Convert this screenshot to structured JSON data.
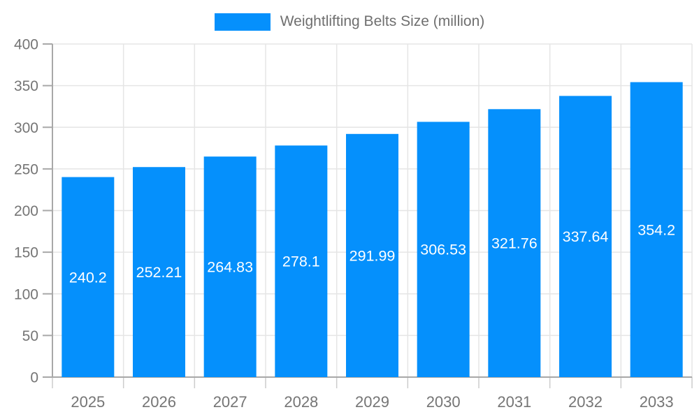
{
  "chart_data": {
    "type": "bar",
    "title": "Weightlifting Belts Size (million)",
    "legend_entries": [
      "Weightlifting Belts Size (million)"
    ],
    "legend_position": "top",
    "categories": [
      "2025",
      "2026",
      "2027",
      "2028",
      "2029",
      "2030",
      "2031",
      "2032",
      "2033"
    ],
    "series": [
      {
        "name": "Weightlifting Belts Size (million)",
        "values": [
          240.2,
          252.21,
          264.83,
          278.1,
          291.99,
          306.53,
          321.76,
          337.64,
          354.2
        ]
      }
    ],
    "value_labels": [
      "240.2",
      "252.21",
      "264.83",
      "278.1",
      "291.99",
      "306.53",
      "321.76",
      "337.64",
      "354.2"
    ],
    "value_label_position": "inside-center",
    "xlabel": "",
    "ylabel": "",
    "ylim": [
      0,
      400
    ],
    "ytick_step": 50,
    "yticks": [
      0,
      50,
      100,
      150,
      200,
      250,
      300,
      350,
      400
    ],
    "grid": true,
    "colors": {
      "bar": "#0590FC",
      "value_label": "#ffffff",
      "axis_line": "#a8a8a8",
      "grid_line": "#e5e5e5",
      "boundary_tick": "#cccccc",
      "tick_label": "#757575",
      "legend_text": "#6f6f6f",
      "background": "#ffffff"
    }
  }
}
